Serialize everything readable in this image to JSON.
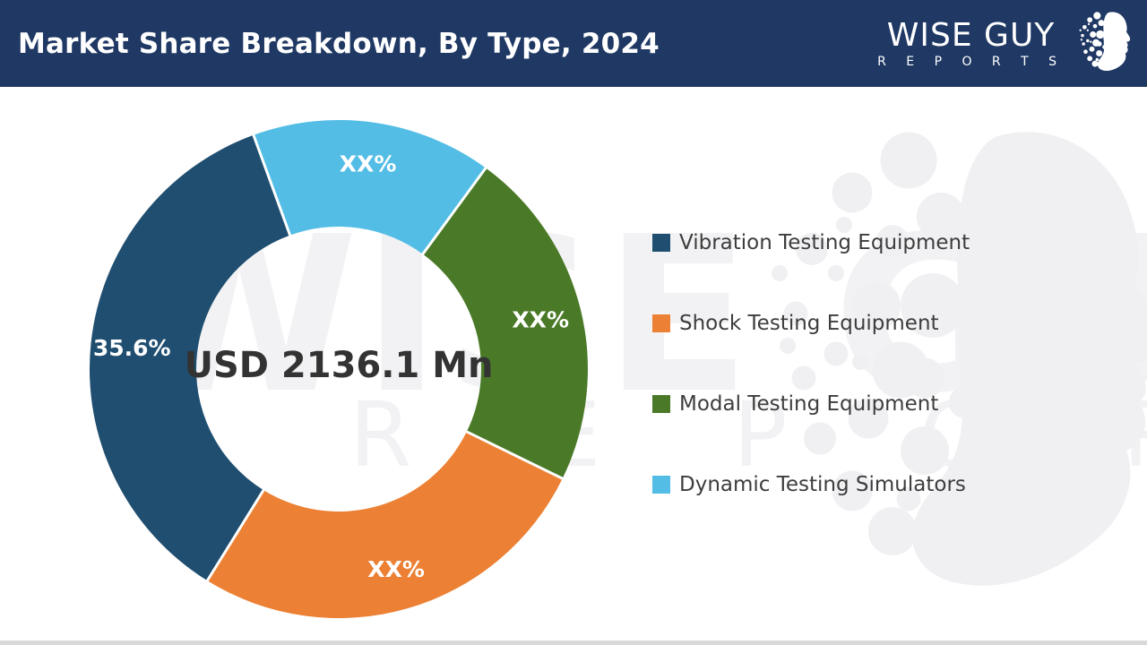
{
  "header": {
    "title": "Market Share Breakdown, By Type, 2024",
    "logo": {
      "name": "WISE GUY",
      "sub": "R E P O R T S"
    }
  },
  "chart_data": {
    "type": "donut",
    "title": "Market Share Breakdown, By Type, 2024",
    "center_label": "USD 2136.1 Mn",
    "start_angle_deg": 110,
    "direction": "clockwise",
    "slices": [
      {
        "label": "Dynamic Testing Simulators",
        "display_value": "XX%",
        "percent_est": 15.6,
        "color": "#53BDE5"
      },
      {
        "label": "Modal Testing Equipment",
        "display_value": "XX%",
        "percent_est": 22.2,
        "color": "#4A7A28"
      },
      {
        "label": "Shock Testing Equipment",
        "display_value": "XX%",
        "percent_est": 26.6,
        "color": "#EC8034"
      },
      {
        "label": "Vibration Testing Equipment",
        "display_value": "35.6%",
        "percent_est": 35.6,
        "color": "#1F4E70"
      }
    ]
  },
  "legend": {
    "items": [
      {
        "label": "Vibration Testing Equipment",
        "color": "#1F4E70"
      },
      {
        "label": "Shock Testing Equipment",
        "color": "#EC8034"
      },
      {
        "label": "Modal Testing Equipment",
        "color": "#4A7A28"
      },
      {
        "label": "Dynamic Testing Simulators",
        "color": "#53BDE5"
      }
    ]
  },
  "watermark": {
    "line1": "WISE GUY",
    "line2": "R E P O R T S"
  },
  "colors": {
    "header_bg": "#1F3864",
    "footer_bar": "#D9D9D9"
  }
}
